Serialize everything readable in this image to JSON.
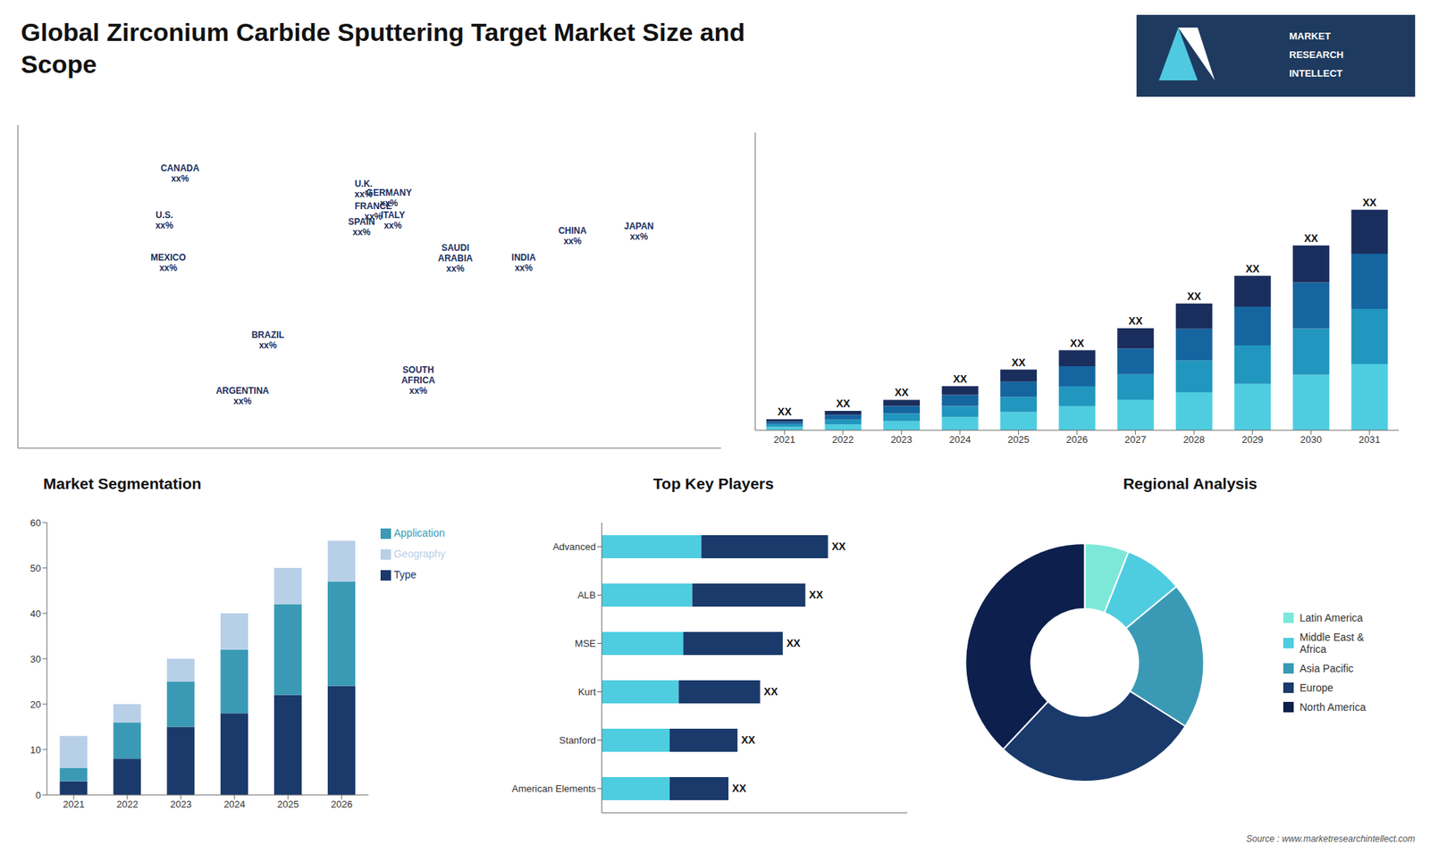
{
  "title": "Global Zirconium Carbide Sputtering Target Market Size and\nScope",
  "annotations": [
    "MARKET",
    "RESEARCH",
    "INTELLECT",
    "Source : www.marketresearchintellect.com"
  ],
  "chart_data": [
    {
      "type": "map",
      "xlim": [
        -180,
        180
      ],
      "ylim": [
        -60,
        85
      ],
      "tick_labels": false,
      "grid": false,
      "annotations": [
        {
          "text": "CANADA\nxx%",
          "x": -97,
          "y": 63
        },
        {
          "text": "U.S.\nxx%",
          "x": -105,
          "y": 42
        },
        {
          "text": "MEXICO\nxx%",
          "x": -103,
          "y": 23
        },
        {
          "text": "BRAZIL\nxx%",
          "x": -52,
          "y": -12
        },
        {
          "text": "ARGENTINA\nxx%",
          "x": -65,
          "y": -37
        },
        {
          "text": "U.K.\nxx%",
          "x": -3,
          "y": 56
        },
        {
          "text": "FRANCE\nxx%",
          "x": 2,
          "y": 46
        },
        {
          "text": "SPAIN\nxx%",
          "x": -4,
          "y": 39
        },
        {
          "text": "GERMANY\nxx%",
          "x": 10,
          "y": 52
        },
        {
          "text": "ITALY\nxx%",
          "x": 12,
          "y": 42
        },
        {
          "text": "SAUDI\nARABIA\nxx%",
          "x": 44,
          "y": 25
        },
        {
          "text": "SOUTH\nAFRICA\nxx%",
          "x": 25,
          "y": -30
        },
        {
          "text": "CHINA\nxx%",
          "x": 104,
          "y": 35
        },
        {
          "text": "INDIA\nxx%",
          "x": 79,
          "y": 23
        },
        {
          "text": "JAPAN\nxx%",
          "x": 138,
          "y": 37
        }
      ]
    },
    {
      "type": "bar",
      "stacked": true,
      "categories": [
        "2021",
        "2022",
        "2023",
        "2024",
        "2025",
        "2026",
        "2027",
        "2028",
        "2029",
        "2030",
        "2031"
      ],
      "series": [
        {
          "color": "#4ecde0",
          "values": [
            1.2,
            2.1,
            3.3,
            4.8,
            6.6,
            8.7,
            11.1,
            13.8,
            16.8,
            20.1,
            24.0
          ]
        },
        {
          "color": "#2196be",
          "values": [
            1.0,
            1.75,
            2.75,
            4.0,
            5.5,
            7.25,
            9.25,
            11.5,
            14.0,
            16.75,
            20.0
          ]
        },
        {
          "color": "#1565a0",
          "values": [
            1.0,
            1.75,
            2.75,
            4.0,
            5.5,
            7.25,
            9.25,
            11.5,
            14.0,
            16.75,
            20.0
          ]
        },
        {
          "color": "#1a2e5e",
          "values": [
            0.8,
            1.4,
            2.2,
            3.2,
            4.4,
            5.8,
            7.4,
            9.2,
            11.2,
            13.4,
            16.0
          ]
        }
      ],
      "value_labels": [
        "XX",
        "XX",
        "XX",
        "XX",
        "XX",
        "XX",
        "XX",
        "XX",
        "XX",
        "XX",
        "XX"
      ],
      "ylim": [
        0,
        108
      ],
      "tick_labels": "x",
      "grid": false
    },
    {
      "type": "bar",
      "title": "Market Segmentation",
      "stacked": true,
      "categories": [
        "2021",
        "2022",
        "2023",
        "2024",
        "2025",
        "2026"
      ],
      "series": [
        {
          "name": "Type",
          "color": "#1a3a6b",
          "values": [
            3,
            8,
            15,
            18,
            22,
            24
          ]
        },
        {
          "name": "Application",
          "color": "#3a9ab5",
          "values": [
            3,
            8,
            10,
            14,
            20,
            23
          ]
        },
        {
          "name": "Geography",
          "color": "#b8cfe8",
          "values": [
            7,
            4,
            5,
            8,
            8,
            9
          ]
        }
      ],
      "ylim": [
        0,
        60
      ],
      "yticks": [
        0,
        10,
        20,
        30,
        40,
        50,
        60
      ],
      "legend": "right",
      "grid": false
    },
    {
      "type": "bar",
      "title": "Top Key Players",
      "orientation": "horizontal",
      "stacked": true,
      "categories": [
        "Advanced",
        "ALB",
        "MSE",
        "Kurt",
        "Stanford",
        "American Elements"
      ],
      "series": [
        {
          "color": "#4ecde0",
          "values": [
            2.2,
            2.0,
            1.8,
            1.7,
            1.5,
            1.5
          ]
        },
        {
          "color": "#1a3a6b",
          "values": [
            2.8,
            2.5,
            2.2,
            1.8,
            1.5,
            1.3
          ]
        }
      ],
      "value_labels": [
        "XX",
        "XX",
        "XX",
        "XX",
        "XX",
        "XX"
      ],
      "xlim": [
        0,
        6.75
      ],
      "tick_labels": "y",
      "grid": false
    },
    {
      "type": "pie",
      "title": "Regional Analysis",
      "categories": [
        "Latin America",
        "Middle East &\nAfrica",
        "Asia Pacific",
        "Europe",
        "North America"
      ],
      "values": [
        6,
        8,
        20,
        28,
        38
      ],
      "colors": [
        "#7de8d8",
        "#4ecde0",
        "#3a9ab5",
        "#1a3a6b",
        "#0d1f4c"
      ],
      "legend": "right"
    }
  ]
}
